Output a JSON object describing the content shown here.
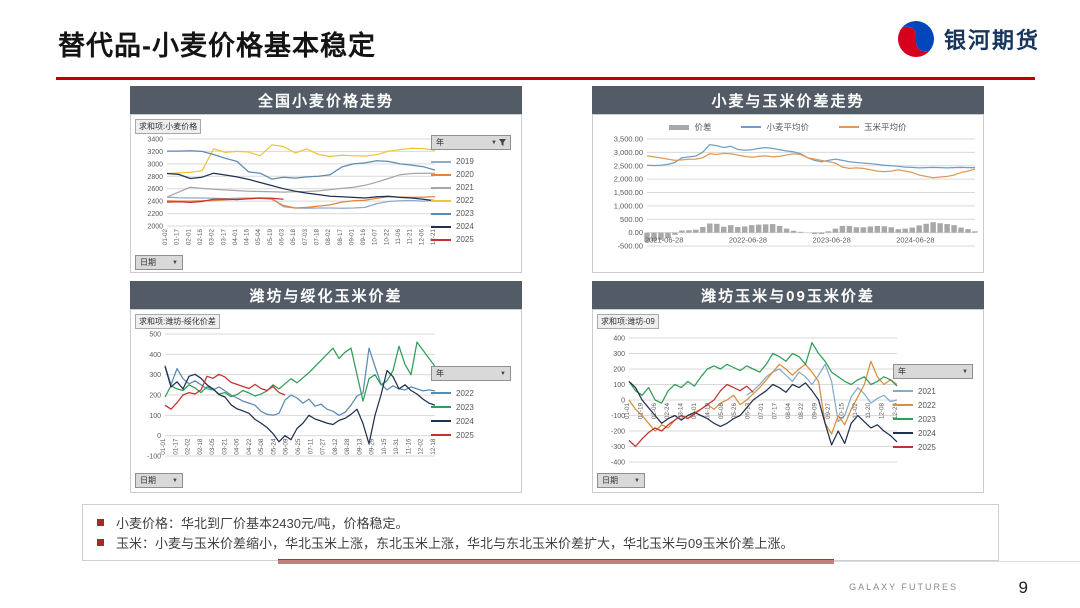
{
  "slide": {
    "title": "替代品-小麦价格基本稳定",
    "logo_text": "银河期货",
    "footer_brand": "GALAXY FUTURES",
    "page_number": "9",
    "accent_red": "#c00000"
  },
  "bullets": [
    {
      "text": "小麦价格：华北到厂价基本2430元/吨，价格稳定。"
    },
    {
      "text": "玉米：小麦与玉米价差缩小，华北玉米上涨，东北玉米上涨，华北与东北玉米价差扩大，华北玉米与09玉米价差上涨。"
    }
  ],
  "chart_data": [
    {
      "type": "line",
      "title": "全国小麦价格走势",
      "pivot_label": "求和项:小麦价格",
      "legend_button": {
        "label": "年",
        "filtered": true
      },
      "date_button": "日期",
      "ylim": [
        2000,
        3400
      ],
      "ytick_step": 200,
      "x_labels": [
        "01-02",
        "01-17",
        "02-01",
        "02-16",
        "03-02",
        "03-17",
        "04-01",
        "04-16",
        "05-04",
        "05-19",
        "06-03",
        "06-18",
        "07-03",
        "07-18",
        "08-02",
        "08-17",
        "09-01",
        "09-16",
        "10-07",
        "10-22",
        "11-06",
        "11-21",
        "12-06",
        "12-21"
      ],
      "x_count": 24,
      "series": [
        {
          "name": "2019",
          "color": "#8fa9d0",
          "values": [
            2465,
            2455,
            2450,
            2450,
            2445,
            2440,
            2445,
            2450,
            2450,
            2445,
            2310,
            2290,
            2285,
            2290,
            2290,
            2285,
            2290,
            2300,
            2360,
            2395,
            2405,
            2410,
            2400,
            2415
          ]
        },
        {
          "name": "2020",
          "color": "#e8823a",
          "values": [
            2405,
            2400,
            2400,
            2405,
            2410,
            2420,
            2430,
            2440,
            2445,
            2430,
            2330,
            2290,
            2300,
            2320,
            2340,
            2385,
            2405,
            2415,
            2445,
            2470,
            2465,
            2460,
            2465,
            2470
          ]
        },
        {
          "name": "2021",
          "color": "#a6a6a6",
          "values": [
            2465,
            2545,
            2625,
            2605,
            2590,
            2580,
            2570,
            2560,
            2555,
            2550,
            2545,
            2550,
            2555,
            2565,
            2585,
            2605,
            2625,
            2655,
            2705,
            2765,
            2825,
            2845,
            2850,
            2850
          ]
        },
        {
          "name": "2022",
          "color": "#f0c53c",
          "values": [
            2845,
            2855,
            2865,
            2890,
            3240,
            3185,
            3200,
            3190,
            3130,
            3305,
            3280,
            3175,
            3240,
            3150,
            3120,
            3140,
            3130,
            3125,
            3145,
            3205,
            3230,
            3250,
            3245,
            3220
          ]
        },
        {
          "name": "2023",
          "color": "#5b8ab5",
          "values": [
            3205,
            3205,
            3210,
            3200,
            3150,
            3090,
            3040,
            2870,
            2850,
            2755,
            2785,
            2770,
            2790,
            2800,
            2825,
            2950,
            3000,
            3015,
            3050,
            3040,
            3000,
            2980,
            2955,
            2900
          ]
        },
        {
          "name": "2024",
          "color": "#203050",
          "values": [
            2845,
            2830,
            2765,
            2785,
            2850,
            2820,
            2790,
            2750,
            2700,
            2650,
            2600,
            2560,
            2530,
            2505,
            2480,
            2470,
            2460,
            2450,
            2470,
            2480,
            2460,
            2450,
            2430,
            2405
          ]
        },
        {
          "name": "2025",
          "color": "#c63031",
          "values": [
            2385,
            2390,
            2380,
            2395,
            2430,
            2435,
            2425,
            2440,
            2450,
            2445,
            2430
          ]
        }
      ]
    },
    {
      "type": "bar+line",
      "title": "小麦与玉米价差走势",
      "ylim": [
        -500,
        3500
      ],
      "ytick_step": 500,
      "y_format": "comma2",
      "x_labels": [
        "2021-06-28",
        "2022-06-28",
        "2023-06-28",
        "2024-06-28"
      ],
      "x_tick_idx": [
        0,
        12,
        24,
        36
      ],
      "x_count": 48,
      "series": [
        {
          "name": "价差",
          "type": "bar",
          "color": "#a8a8a8",
          "values": [
            -350,
            -320,
            -270,
            -200,
            -80,
            80,
            90,
            110,
            210,
            340,
            330,
            220,
            280,
            210,
            230,
            280,
            300,
            310,
            320,
            250,
            150,
            70,
            30,
            0,
            -50,
            -50,
            50,
            150,
            250,
            250,
            200,
            200,
            230,
            250,
            240,
            200,
            130,
            150,
            190,
            270,
            330,
            390,
            350,
            320,
            280,
            190,
            130,
            50
          ]
        },
        {
          "name": "小麦平均价",
          "type": "line",
          "color": "#6f9fc8",
          "values": [
            2520,
            2510,
            2520,
            2550,
            2620,
            2800,
            2830,
            2860,
            3010,
            3290,
            3250,
            3180,
            3230,
            3110,
            3080,
            3100,
            3150,
            3180,
            3150,
            3100,
            3050,
            3020,
            2950,
            2800,
            2700,
            2650,
            2700,
            2750,
            2700,
            2650,
            2620,
            2600,
            2580,
            2550,
            2520,
            2500,
            2480,
            2450,
            2440,
            2420,
            2430,
            2440,
            2430,
            2420,
            2430,
            2440,
            2430,
            2430
          ]
        },
        {
          "name": "玉米平均价",
          "type": "line",
          "color": "#dd9a5c",
          "values": [
            2870,
            2830,
            2790,
            2750,
            2700,
            2720,
            2740,
            2750,
            2800,
            2950,
            2920,
            2960,
            2950,
            2900,
            2850,
            2820,
            2850,
            2870,
            2830,
            2850,
            2900,
            2950,
            2920,
            2800,
            2750,
            2700,
            2650,
            2600,
            2450,
            2400,
            2420,
            2400,
            2350,
            2300,
            2280,
            2300,
            2350,
            2300,
            2250,
            2150,
            2100,
            2050,
            2080,
            2100,
            2150,
            2250,
            2300,
            2380
          ]
        }
      ]
    },
    {
      "type": "line",
      "title": "潍坊与绥化玉米价差",
      "pivot_label": "求和项:潍坊-绥化价差",
      "legend_button": {
        "label": "年",
        "filtered": false
      },
      "date_button": "日期",
      "ylim": [
        -100,
        500
      ],
      "ytick_step": 100,
      "x_labels": [
        "01-01",
        "01-17",
        "02-02",
        "02-18",
        "03-05",
        "03-21",
        "04-06",
        "04-22",
        "05-08",
        "05-24",
        "06-09",
        "06-25",
        "07-11",
        "07-27",
        "08-12",
        "08-28",
        "09-13",
        "09-29",
        "10-15",
        "10-31",
        "11-16",
        "12-02",
        "12-18"
      ],
      "x_count": 46,
      "series": [
        {
          "name": "2022",
          "color": "#5b8ab5",
          "values": [
            345,
            250,
            330,
            280,
            255,
            270,
            250,
            230,
            225,
            240,
            220,
            200,
            185,
            170,
            160,
            150,
            120,
            105,
            100,
            110,
            175,
            200,
            185,
            160,
            180,
            145,
            155,
            130,
            120,
            100,
            115,
            150,
            195,
            210,
            430,
            340,
            255,
            225,
            245,
            230,
            225,
            240,
            230,
            220,
            225,
            220
          ]
        },
        {
          "name": "2023",
          "color": "#2f9e57",
          "values": [
            190,
            245,
            230,
            222,
            250,
            235,
            212,
            240,
            230,
            205,
            212,
            192,
            202,
            222,
            210,
            195,
            205,
            220,
            250,
            230,
            255,
            280,
            260,
            285,
            310,
            340,
            370,
            400,
            430,
            380,
            410,
            430,
            300,
            170,
            280,
            300,
            250,
            270,
            320,
            440,
            350,
            300,
            460,
            420,
            380,
            340
          ]
        },
        {
          "name": "2024",
          "color": "#203050",
          "values": [
            340,
            240,
            265,
            230,
            292,
            302,
            282,
            250,
            230,
            202,
            190,
            152,
            132,
            122,
            110,
            80,
            62,
            40,
            10,
            -30,
            0,
            -20,
            35,
            62,
            100,
            82,
            72,
            62,
            55,
            75,
            85,
            105,
            130,
            60,
            -40,
            100,
            200,
            320,
            290,
            230,
            250,
            222,
            205,
            180,
            160,
            150
          ]
        },
        {
          "name": "2025",
          "color": "#c63031",
          "values": [
            150,
            130,
            162,
            200,
            212,
            205,
            225,
            292,
            282,
            302,
            288,
            262,
            252,
            242,
            232,
            252,
            232,
            222,
            242,
            212,
            200
          ]
        }
      ]
    },
    {
      "type": "line",
      "title": "潍坊玉米与09玉米价差",
      "pivot_label": "求和项:潍坊-09",
      "legend_button": {
        "label": "年",
        "filtered": false
      },
      "date_button": "日期",
      "ylim": [
        -400,
        400
      ],
      "ytick_step": 100,
      "x_labels": [
        "01-01",
        "01-19",
        "02-06",
        "02-24",
        "03-14",
        "04-01",
        "04-19",
        "05-08",
        "05-26",
        "06-13",
        "07-01",
        "07-17",
        "08-04",
        "08-22",
        "09-09",
        "09-27",
        "10-15",
        "11-02",
        "11-20",
        "12-08",
        "12-26"
      ],
      "x_count": 42,
      "series": [
        {
          "name": "2021",
          "color": "#85abc8",
          "values": [
            null,
            null,
            null,
            null,
            null,
            null,
            null,
            null,
            null,
            null,
            null,
            null,
            null,
            null,
            null,
            null,
            null,
            null,
            30,
            60,
            100,
            150,
            180,
            200,
            160,
            120,
            180,
            150,
            100,
            160,
            230,
            120,
            -140,
            -100,
            20,
            80,
            40,
            -20,
            10,
            30,
            -10,
            0
          ]
        },
        {
          "name": "2022",
          "color": "#d78f3c",
          "values": [
            0,
            -60,
            -100,
            -150,
            -200,
            -160,
            -180,
            -130,
            -100,
            -120,
            -80,
            -60,
            -30,
            -60,
            -20,
            0,
            30,
            -30,
            0,
            40,
            80,
            130,
            180,
            230,
            200,
            160,
            200,
            230,
            180,
            120,
            -150,
            -220,
            -100,
            -160,
            -60,
            20,
            100,
            250,
            150,
            100,
            130,
            100
          ]
        },
        {
          "name": "2023",
          "color": "#2f9e57",
          "values": [
            120,
            60,
            30,
            80,
            0,
            -20,
            60,
            100,
            80,
            120,
            90,
            150,
            200,
            220,
            200,
            230,
            210,
            190,
            220,
            200,
            180,
            230,
            300,
            280,
            250,
            300,
            280,
            230,
            370,
            300,
            250,
            180,
            150,
            120,
            100,
            130,
            150,
            100,
            120,
            150,
            130,
            90
          ]
        },
        {
          "name": "2024",
          "color": "#203050",
          "values": [
            120,
            80,
            0,
            -50,
            -100,
            -150,
            -120,
            -100,
            -130,
            -100,
            -80,
            -100,
            -120,
            -150,
            -170,
            -150,
            -120,
            -100,
            -50,
            0,
            30,
            60,
            100,
            80,
            50,
            100,
            80,
            110,
            60,
            0,
            -150,
            -290,
            -200,
            -280,
            -150,
            -100,
            -140,
            -180,
            -160,
            -200,
            -230,
            -270
          ]
        },
        {
          "name": "2025",
          "color": "#c63031",
          "values": [
            -260,
            -300,
            -250,
            -210,
            -180,
            -200,
            -160,
            -130,
            -100,
            -120,
            -90,
            -60,
            -30,
            0,
            60,
            100,
            80,
            60,
            90,
            50
          ]
        }
      ]
    }
  ]
}
